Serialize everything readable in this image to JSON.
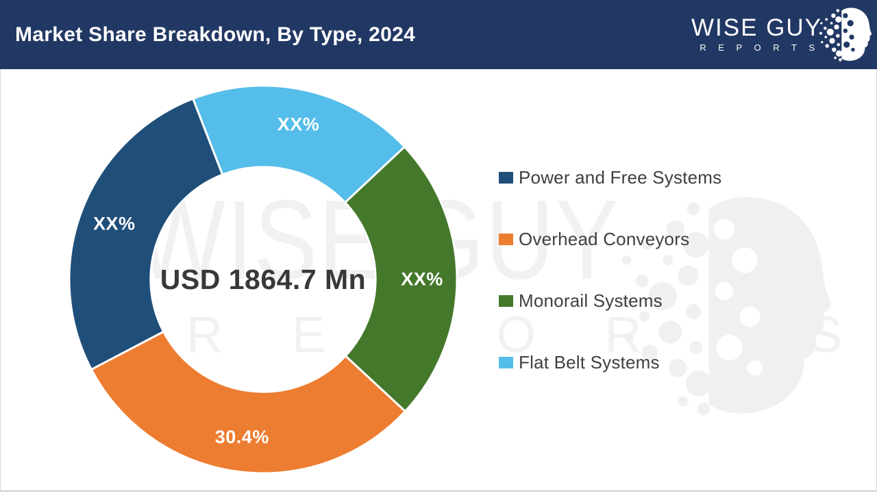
{
  "header": {
    "title": "Market Share Breakdown, By Type, 2024",
    "bg_color": "#223864",
    "logo": {
      "line1": "WISE GUY",
      "line2": "R E P O R T S"
    }
  },
  "watermark": {
    "line1": "WISE GUY",
    "line2": "R E P O R T S"
  },
  "chart_data": {
    "type": "pie",
    "subtype": "donut",
    "title": "Market Share Breakdown, By Type, 2024",
    "center_label": "USD 1864.7 Mn",
    "start_angle_deg": -21.2,
    "direction": "clockwise",
    "inner_radius_ratio": 0.58,
    "label_radius_ratio": 0.82,
    "outer_radius_px": 283,
    "segments": [
      {
        "name": "Flat Belt Systems",
        "value_pct": 18.9,
        "display_label": "XX%",
        "color": "#55BDE9"
      },
      {
        "name": "Monorail Systems",
        "value_pct": 23.9,
        "display_label": "XX%",
        "color": "#44782B"
      },
      {
        "name": "Overhead Conveyors",
        "value_pct": 30.4,
        "display_label": "30.4%",
        "color": "#ED7D31"
      },
      {
        "name": "Power and Free Systems",
        "value_pct": 26.8,
        "display_label": "XX%",
        "color": "#1F4E79"
      }
    ],
    "legend_position": "right"
  },
  "legend": {
    "items": [
      {
        "label": "Power and Free Systems",
        "color": "#1F4E79"
      },
      {
        "label": "Overhead Conveyors",
        "color": "#ED7D31"
      },
      {
        "label": "Monorail Systems",
        "color": "#44782B"
      },
      {
        "label": "Flat Belt Systems",
        "color": "#55BDE9"
      }
    ]
  }
}
